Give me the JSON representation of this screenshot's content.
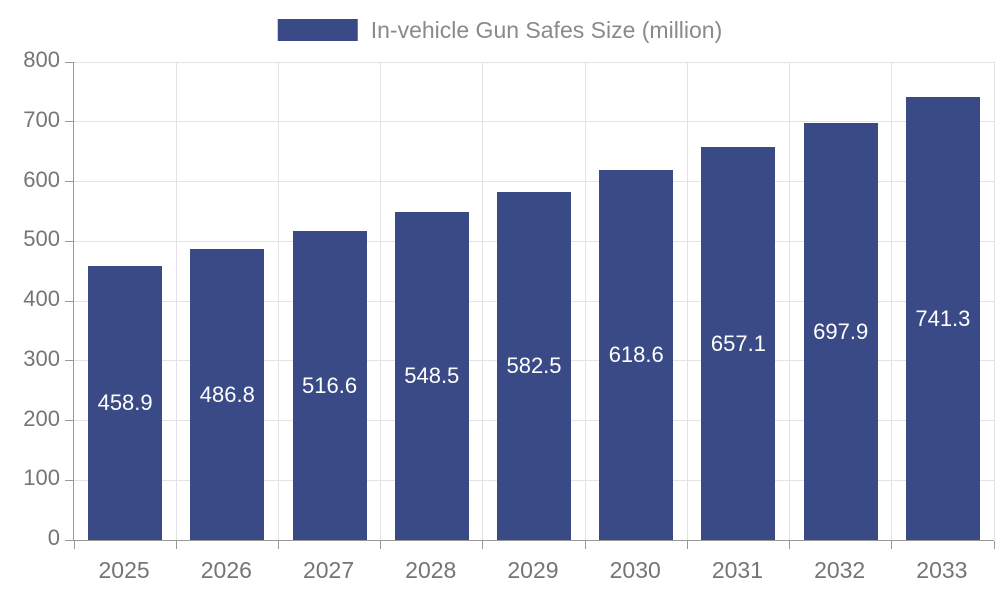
{
  "page": {
    "background": "#ffffff"
  },
  "legend": {
    "position": "top-center",
    "items": [
      {
        "label": "In-vehicle Gun Safes Size (million)",
        "swatch_color": "#394a86"
      }
    ]
  },
  "chart_data": {
    "type": "bar",
    "title": "In-vehicle Gun Safes Size (million)",
    "categories": [
      "2025",
      "2026",
      "2027",
      "2028",
      "2029",
      "2030",
      "2031",
      "2032",
      "2033"
    ],
    "series": [
      {
        "name": "In-vehicle Gun Safes Size (million)",
        "values": [
          458.9,
          486.8,
          516.6,
          548.5,
          582.5,
          618.6,
          657.1,
          697.9,
          741.3
        ]
      }
    ],
    "xlabel": "",
    "ylabel": "",
    "ylim": [
      0,
      800
    ],
    "ytick_interval": 100,
    "yticks": [
      0,
      100,
      200,
      300,
      400,
      500,
      600,
      700,
      800
    ],
    "grid": true,
    "value_labels_position": "inside-center",
    "colors": {
      "bar": "#394a86",
      "value_label": "#ffffff",
      "axis_line": "#999999",
      "gridline": "#e2e2e8",
      "tick_label": "#757575",
      "legend_text": "#8a8a8a",
      "background": "#ffffff"
    }
  }
}
